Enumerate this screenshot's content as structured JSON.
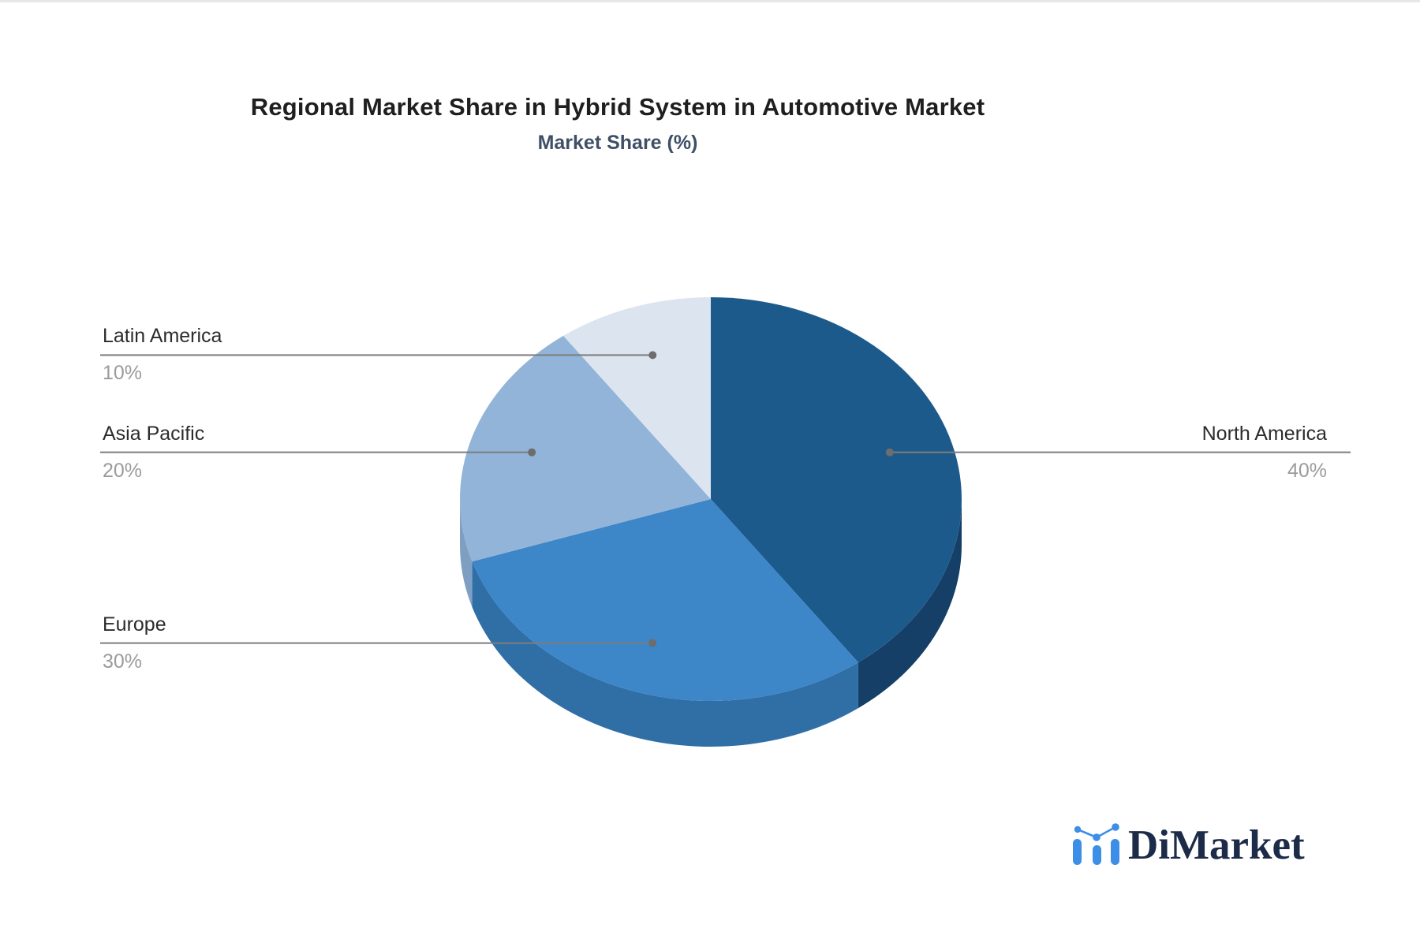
{
  "title": "Regional Market Share in Hybrid System in Automotive Market",
  "subtitle": "Market Share (%)",
  "brand": {
    "name": "DiMarket",
    "icon": "bar-line-chart-icon",
    "icon_color": "#3d8ee7",
    "text_color": "#1b2b48"
  },
  "leader_style": {
    "line_color": "#7d7d7d",
    "dot_color": "#6d6d6d",
    "label_color": "#2c2c2c",
    "percent_color": "#9b9b9b"
  },
  "chart_data": {
    "type": "pie",
    "style": "3d",
    "title": "Regional Market Share in Hybrid System in Automotive Market",
    "subtitle": "Market Share (%)",
    "unit": "%",
    "start_angle_deg": 0,
    "direction": "clockwise",
    "legend_position": "leader-labels",
    "slices": [
      {
        "label": "North America",
        "value": 40,
        "pct_label": "40%",
        "color": "#1C5A8C",
        "side_color": "#153F66",
        "label_side": "right"
      },
      {
        "label": "Europe",
        "value": 30,
        "pct_label": "30%",
        "color": "#3D86C8",
        "side_color": "#2F6FA6",
        "label_side": "left"
      },
      {
        "label": "Asia Pacific",
        "value": 20,
        "pct_label": "20%",
        "color": "#92B4D8",
        "side_color": "#7F9FC2",
        "label_side": "left"
      },
      {
        "label": "Latin America",
        "value": 10,
        "pct_label": "10%",
        "color": "#DCE4F0",
        "side_color": "#C8D2E0",
        "label_side": "left"
      }
    ]
  }
}
